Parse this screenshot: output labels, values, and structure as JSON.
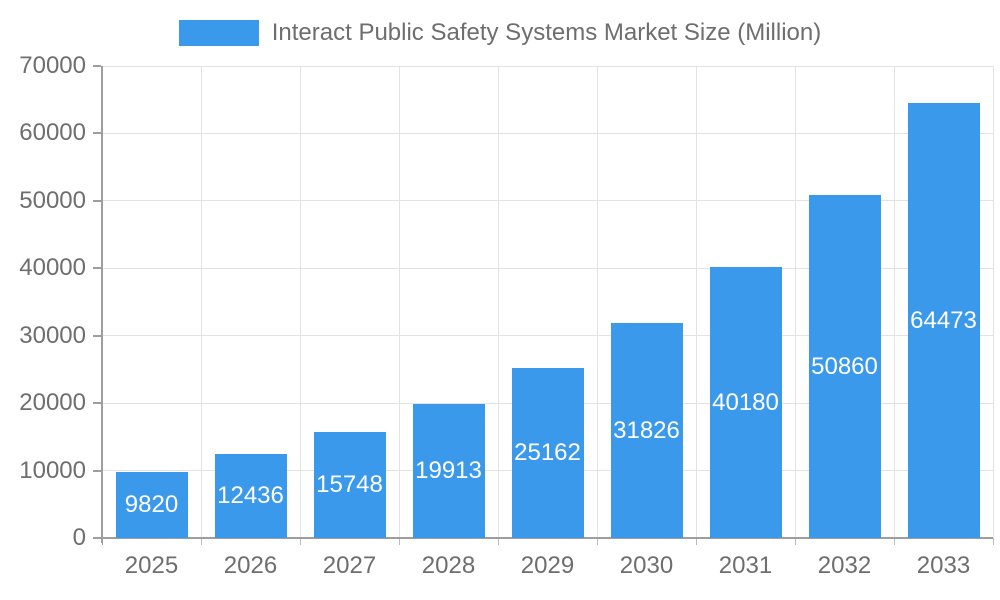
{
  "legend": {
    "label": "Interact Public Safety Systems Market Size (Million)"
  },
  "colors": {
    "bar": "#3b99ec",
    "grid": "#e3e3e3",
    "axis_line": "#9e9e9e",
    "tick": "#bdbdbd",
    "axis_text": "#6e6e6e",
    "value_text": "#ffffff",
    "background": "#ffffff"
  },
  "chart_data": {
    "type": "bar",
    "title": "Interact Public Safety Systems Market Size (Million)",
    "categories": [
      "2025",
      "2026",
      "2027",
      "2028",
      "2029",
      "2030",
      "2031",
      "2032",
      "2033"
    ],
    "values": [
      9820,
      12436,
      15748,
      19913,
      25162,
      31826,
      40180,
      50860,
      64473
    ],
    "series_name": "Interact Public Safety Systems Market Size (Million)",
    "xlabel": "",
    "ylabel": "",
    "ylim": [
      0,
      70000
    ],
    "ytick_step": 10000,
    "ytick_labels": [
      "0",
      "10000",
      "20000",
      "30000",
      "40000",
      "50000",
      "60000",
      "70000"
    ],
    "grid": true,
    "legend_position": "top-center",
    "value_labels": "inside-center"
  }
}
